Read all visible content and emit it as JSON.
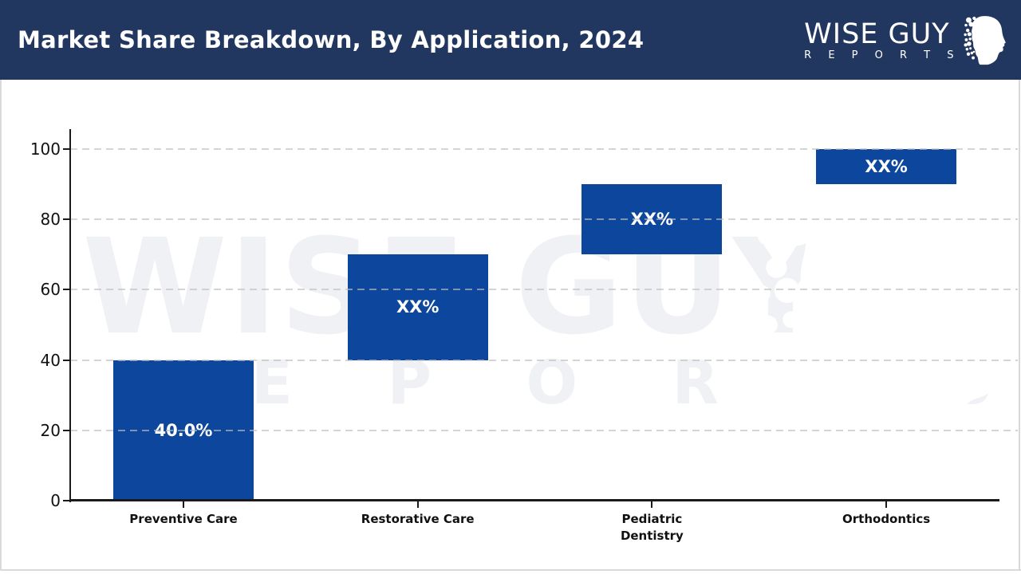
{
  "header": {
    "title": "Market Share Breakdown, By Application, 2024",
    "logo": {
      "line1": "WISE GUY",
      "line2": "R E P O R T S"
    }
  },
  "watermark": {
    "line1": "WISE GUY",
    "line2": "R E P O R T S"
  },
  "colors": {
    "header_bg": "#22375F",
    "header_text": "#FFFFFF",
    "bar": "#0C479D",
    "bar_label": "#FFFFFF",
    "grid": "#D9D9D9",
    "axis": "#1A1A1A",
    "tick_text": "#111111",
    "watermark": "#F0F1F4",
    "frame_border": "#D9D9D9"
  },
  "chart_data": {
    "type": "bar",
    "subtype": "waterfall-segments",
    "title": "Market Share Breakdown, By Application, 2024",
    "categories": [
      "Preventive Care",
      "Restorative Care",
      "Pediatric\nDentistry",
      "Orthodontics"
    ],
    "bars": [
      {
        "category": "Preventive Care",
        "start": 0,
        "end": 40,
        "label": "40.0%"
      },
      {
        "category": "Restorative Care",
        "start": 40,
        "end": 70,
        "label": "XX%"
      },
      {
        "category": "Pediatric Dentistry",
        "start": 70,
        "end": 90,
        "label": "XX%"
      },
      {
        "category": "Orthodontics",
        "start": 90,
        "end": 100,
        "label": "XX%"
      }
    ],
    "xlabel": "",
    "ylabel": "",
    "ylim": [
      0,
      100
    ],
    "yticks": [
      0,
      20,
      40,
      60,
      80,
      100
    ],
    "grid": "dashed-horizontal",
    "legend": "none"
  }
}
